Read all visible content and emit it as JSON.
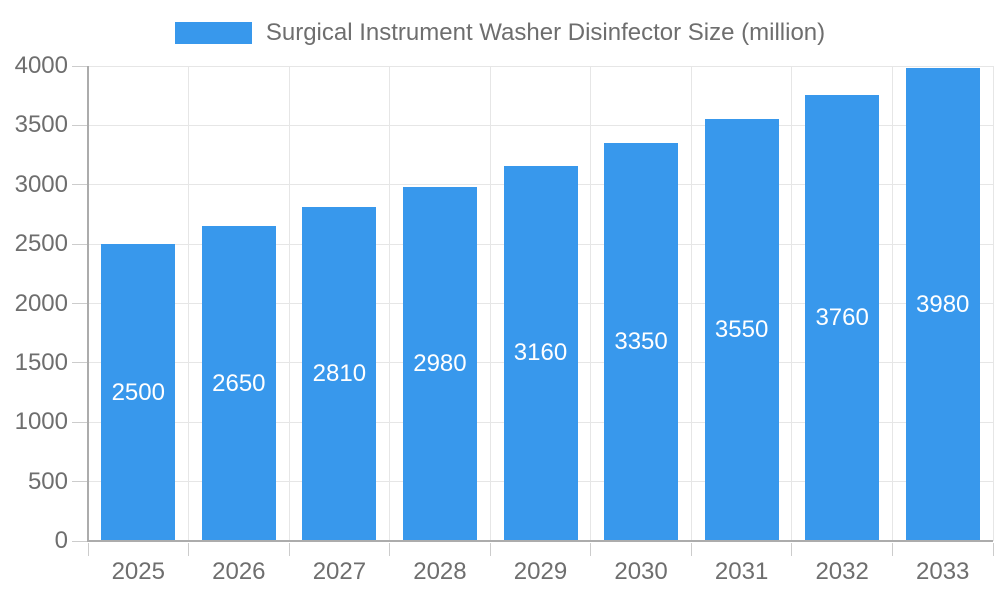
{
  "chart_data": {
    "type": "bar",
    "title": "Surgical Instrument Washer Disinfector Size (million)",
    "categories": [
      "2025",
      "2026",
      "2027",
      "2028",
      "2029",
      "2030",
      "2031",
      "2032",
      "2033"
    ],
    "values": [
      2500,
      2650,
      2810,
      2980,
      3160,
      3350,
      3550,
      3760,
      3980
    ],
    "series": [
      {
        "name": "Surgical Instrument Washer Disinfector Size (million)",
        "values": [
          2500,
          2650,
          2810,
          2980,
          3160,
          3350,
          3550,
          3760,
          3980
        ]
      }
    ],
    "xlabel": "",
    "ylabel": "",
    "ylim": [
      0,
      4000
    ],
    "yticks": [
      0,
      500,
      1000,
      1500,
      2000,
      2500,
      3000,
      3500,
      4000
    ],
    "grid": true,
    "legend_position": "top-center",
    "bar_labels_inside": true,
    "colors": {
      "bar": "#3898EC",
      "bar_label": "#FFFFFF",
      "text": "#6E6E6E",
      "gridline": "#E6E6E6",
      "axis_line": "#ACACAC",
      "tick": "#CCCCCC",
      "background": "#FFFFFF"
    }
  }
}
